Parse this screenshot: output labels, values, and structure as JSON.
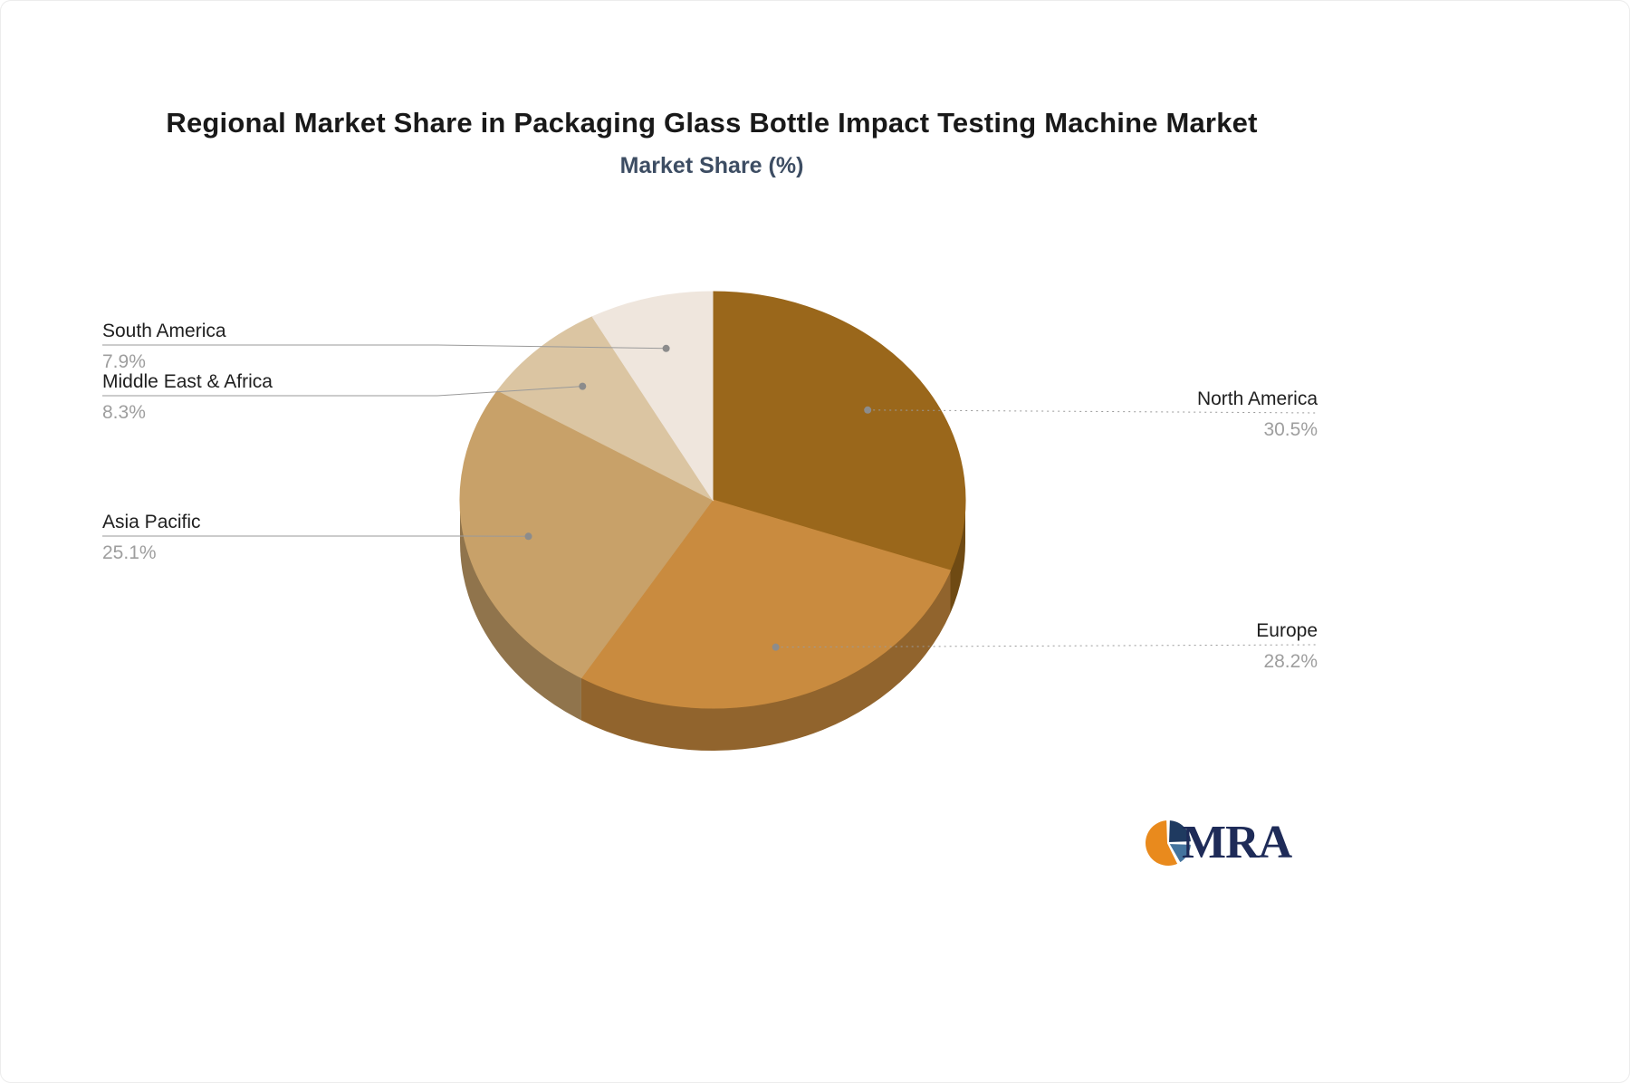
{
  "chart_data": {
    "type": "pie",
    "title": "Regional Market Share in Packaging Glass Bottle Impact Testing Machine Market",
    "subtitle": "Market Share (%)",
    "unit": "%",
    "start_angle_deg": 0,
    "direction": "clockwise",
    "style": "3d-pie",
    "slices": [
      {
        "label": "North America",
        "value": 30.5,
        "color": "#9A671B"
      },
      {
        "label": "Europe",
        "value": 28.2,
        "color": "#C98B3F"
      },
      {
        "label": "Asia Pacific",
        "value": 25.1,
        "color": "#C8A169"
      },
      {
        "label": "Middle East & Africa",
        "value": 8.3,
        "color": "#DBC5A2"
      },
      {
        "label": "South America",
        "value": 7.9,
        "color": "#EFE6DD"
      }
    ],
    "connector_color": "#9a9a9a",
    "percent_color": "#9e9e9e",
    "name_color": "#1f1f1f"
  },
  "logo": {
    "text": "MRA",
    "colors": {
      "orange": "#E98A1D",
      "navy": "#1F3A60",
      "blue": "#44749E",
      "text": "#1E2B58"
    }
  }
}
